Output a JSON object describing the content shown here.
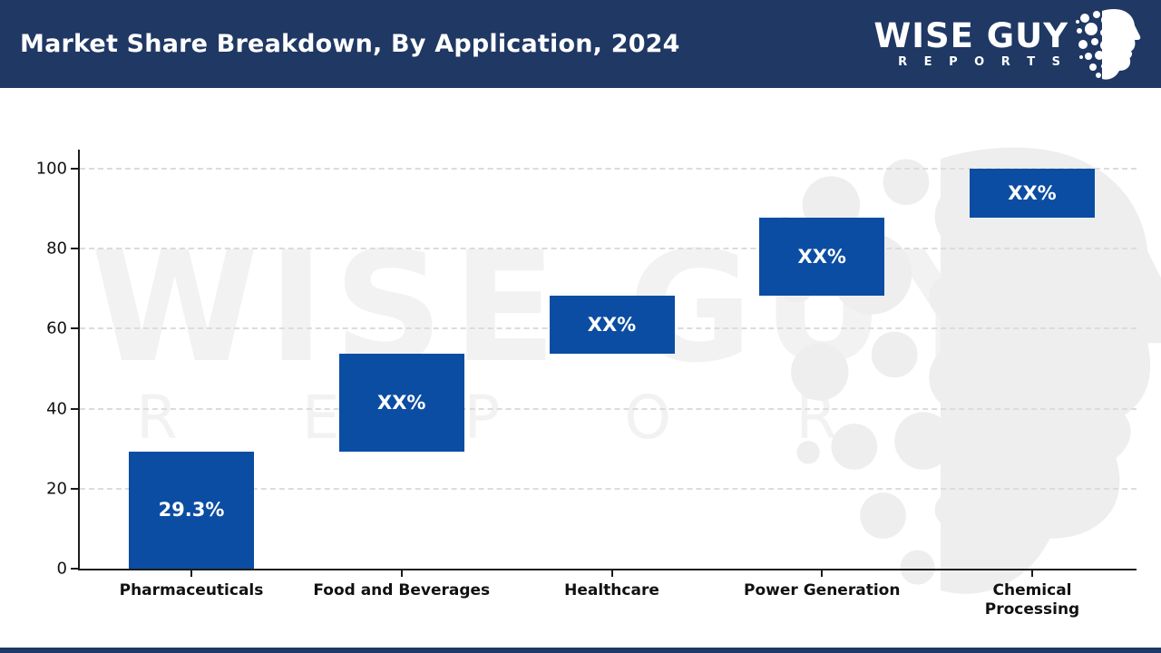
{
  "header": {
    "title": "Market Share Breakdown, By Application, 2024",
    "logo_line1": "WISE GUY",
    "logo_line2": "R E P O R T S"
  },
  "watermark": {
    "line1": "WISE GUY",
    "line2": "R E P O R T S"
  },
  "colors": {
    "header_bg": "#1f3864",
    "footer_bg": "#1f3864",
    "bar": "#0b4da2",
    "bar_label": "#ffffff",
    "grid": "#dcdcdc",
    "axis": "#1c1c1c",
    "watermark": "#ededed"
  },
  "chart_data": {
    "type": "bar",
    "subtype": "floating-waterfall",
    "title": "Market Share Breakdown, By Application, 2024",
    "categories": [
      "Pharmaceuticals",
      "Food and Beverages",
      "Healthcare",
      "Power Generation",
      "Chemical\nProcessing"
    ],
    "segments": [
      {
        "category": "Pharmaceuticals",
        "start": 0,
        "end": 29.3,
        "label": "29.3%"
      },
      {
        "category": "Food and Beverages",
        "start": 29.3,
        "end": 53.7,
        "label": "XX%"
      },
      {
        "category": "Healthcare",
        "start": 53.7,
        "end": 68.3,
        "label": "XX%"
      },
      {
        "category": "Power Generation",
        "start": 68.3,
        "end": 87.8,
        "label": "XX%"
      },
      {
        "category": "Chemical Processing",
        "start": 87.8,
        "end": 100,
        "label": "XX%"
      }
    ],
    "ylim": [
      0,
      100
    ],
    "yticks": [
      0,
      20,
      40,
      60,
      80,
      100
    ],
    "grid": "horizontal-dashed",
    "legend": "none",
    "xlabel": "",
    "ylabel": ""
  }
}
